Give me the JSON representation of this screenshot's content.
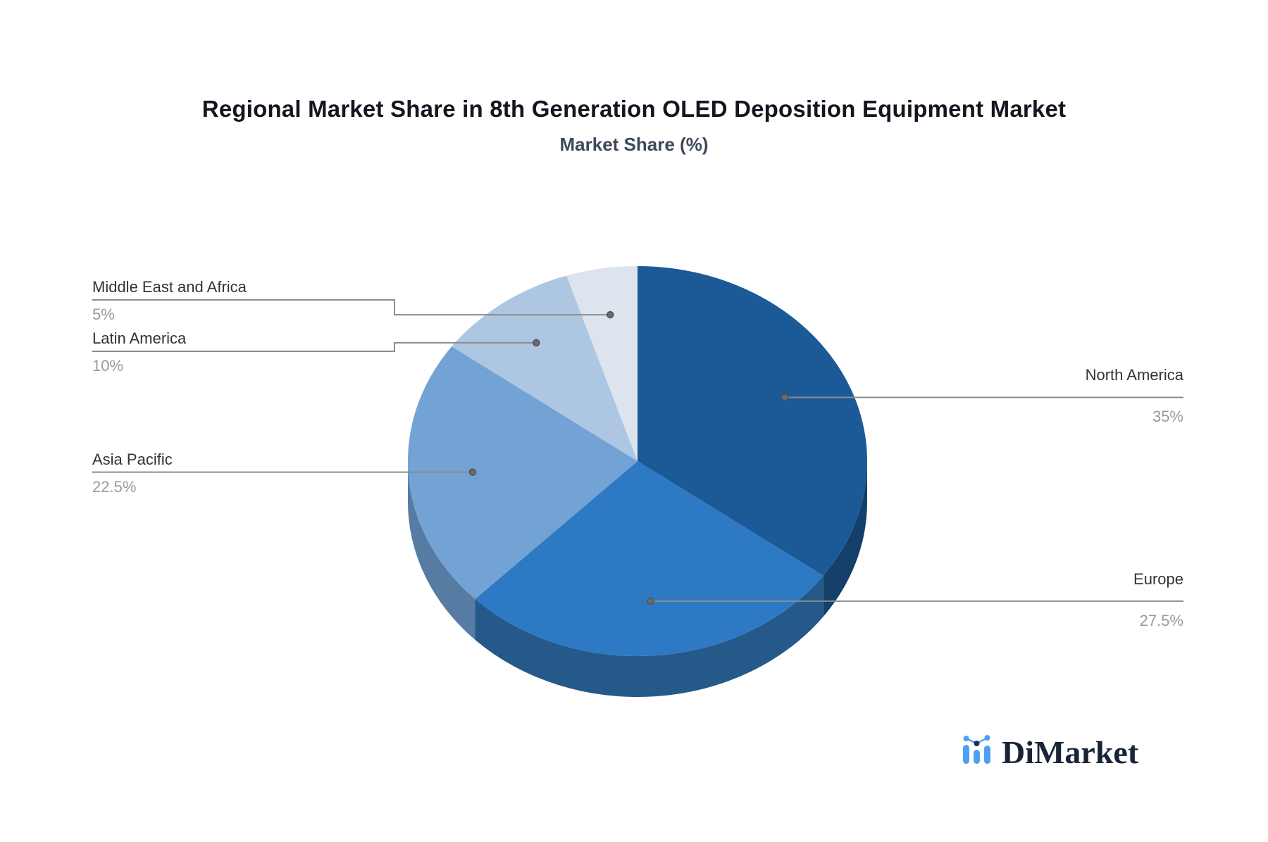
{
  "title": "Regional Market Share in 8th Generation OLED Deposition Equipment Market",
  "subtitle": "Market Share (%)",
  "chart_data": {
    "type": "pie",
    "style": "3d",
    "title": "Market Share (%)",
    "unit": "%",
    "start_angle_deg": 0,
    "direction": "clockwise",
    "legend_position": "callout-labels",
    "labels": [
      "North America",
      "Europe",
      "Asia Pacific",
      "Latin America",
      "Middle East and Africa"
    ],
    "values": [
      35,
      27.5,
      22.5,
      10,
      5
    ],
    "value_labels": [
      "35%",
      "27.5%",
      "22.5%",
      "10%",
      "5%"
    ],
    "colors": [
      "#1b5a97",
      "#2e79c3",
      "#73a2d4",
      "#adc7e3",
      "#dde4ee"
    ],
    "side_colors": [
      "#133f6a",
      "#25598a",
      "#567ca3",
      "#7e97b2",
      "#a8b4c4"
    ],
    "callout_line_color": "#8c8c8c",
    "label_color": "#333333",
    "value_color": "#9a9a9a"
  },
  "logo": {
    "text": "DiMarket",
    "icon": "bar-line-chart-icon",
    "icon_color": "#4aa1f4",
    "icon_accent_color": "#22304d",
    "text_color": "#1a2438"
  },
  "colors": {
    "background": "#ffffff",
    "title": "#14161f",
    "subtitle": "#3e4a59"
  }
}
